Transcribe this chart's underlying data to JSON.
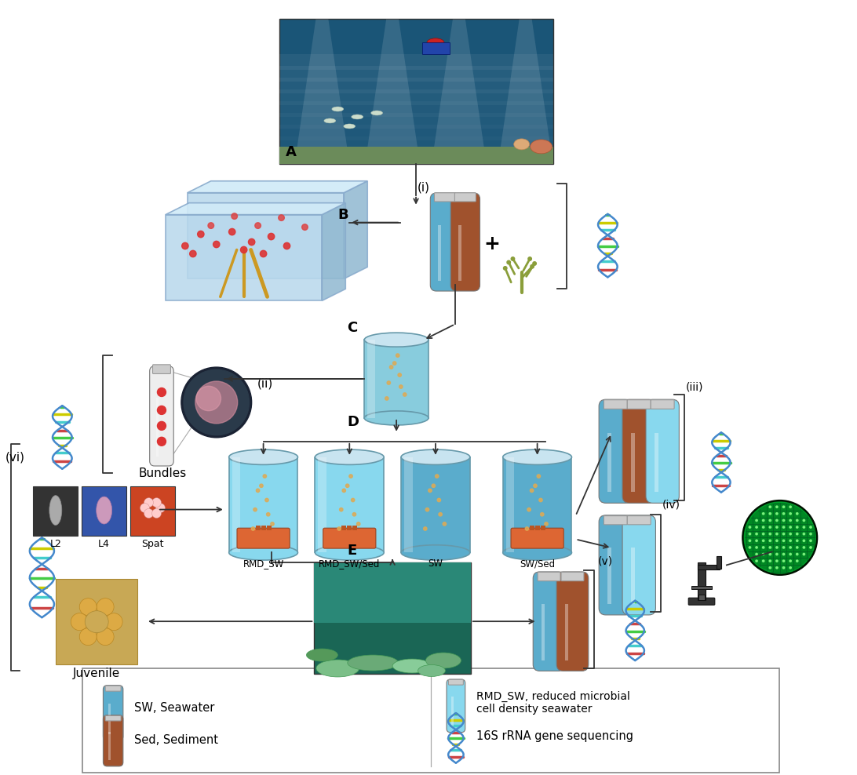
{
  "background_color": "#ffffff",
  "figure_width": 10.92,
  "figure_height": 9.88,
  "labels": {
    "A": "A",
    "B": "B",
    "C": "C",
    "D": "D",
    "E": "E",
    "i": "(i)",
    "ii": "(ii)",
    "iii": "(iii)",
    "iv": "(iv)",
    "v": "(v)",
    "vi": "(vi)",
    "bundles": "Bundles",
    "L2": "L2",
    "L4": "L4",
    "Spat": "Spat",
    "Juvenile": "Juvenile",
    "RMD_SW": "RMD_SW",
    "RMD_SW_Sed": "RMD_SW/Sed",
    "SW": "SW",
    "SW_Sed": "SW/Sed",
    "plus": "+",
    "legend_sw": "SW, Seawater",
    "legend_sed": "Sed, Sediment",
    "legend_rmd": "RMD_SW, reduced microbial\ncell density seawater",
    "legend_16s": "16S rRNA gene sequencing"
  },
  "colors": {
    "sw_blue": "#5aaccc",
    "rmd_cyan": "#88d8ee",
    "sed_brown": "#a0522d",
    "tank_water": "#a8d4e8",
    "tank_rim": "#c8e4f0",
    "arrow": "#333333",
    "label": "#000000",
    "legend_border": "#888888",
    "underwater_dark": "#1a5577",
    "underwater_mid": "#2a7799",
    "coral_olive": "#8a9e3a",
    "platform_orange": "#dd6633",
    "bubble_gold": "#ddaa55",
    "dna_blue": "#4488cc",
    "dna_red": "#cc4444",
    "dna_green": "#44cc44",
    "dna_cyan": "#44cccc",
    "dna_yellow": "#cccc00",
    "dna_purple": "#cc44cc"
  }
}
